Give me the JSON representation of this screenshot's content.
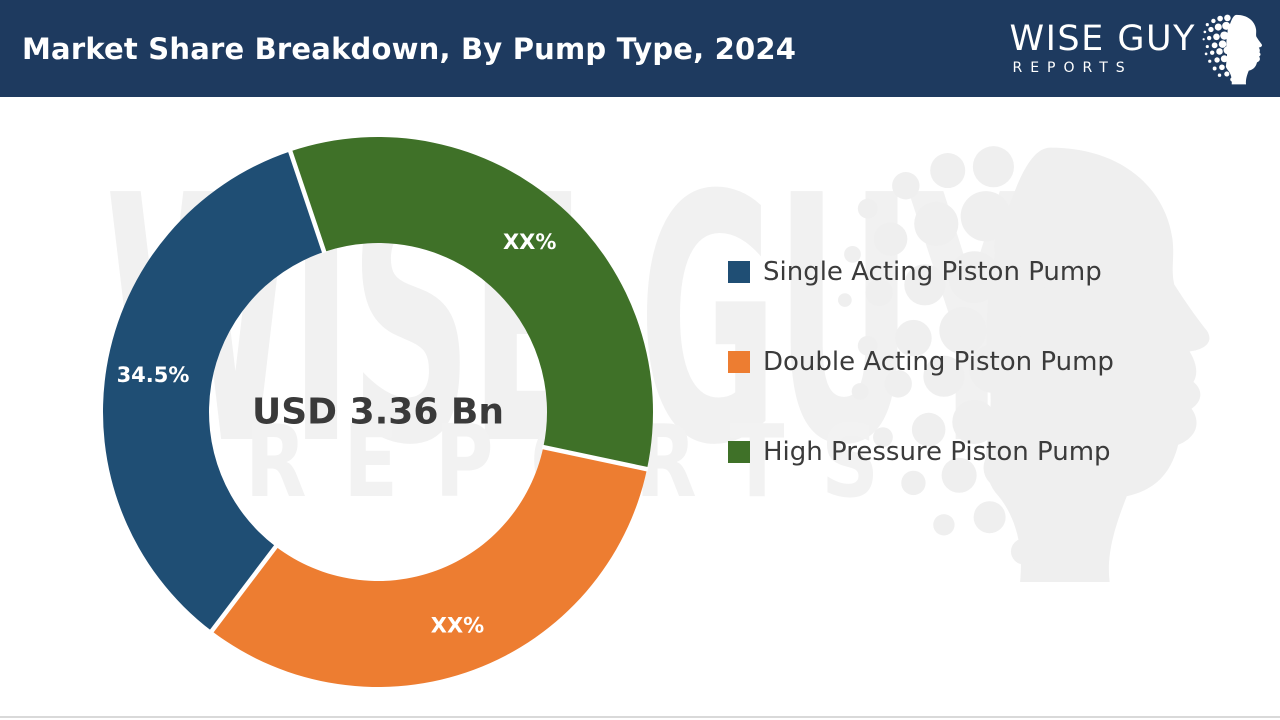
{
  "header": {
    "title": "Market Share Breakdown, By Pump Type, 2024",
    "logo": {
      "line1": "WISE GUY",
      "line2": "REPORTS"
    }
  },
  "watermark": {
    "line1": "WISE GUY",
    "line2": "REPORTS"
  },
  "chart_data": {
    "type": "pie",
    "subtype": "donut",
    "title": "Market Share Breakdown, By Pump Type, 2024",
    "center_label": "USD 3.36 Bn",
    "legend_position": "right",
    "start_angle_deg": 108.6,
    "direction": "counterclockwise",
    "segments": [
      {
        "label": "Single Acting Piston Pump",
        "value": 34.5,
        "display_label": "34.5%",
        "color": "#1f4e74"
      },
      {
        "label": "Double Acting Piston Pump",
        "value": 32.0,
        "display_label": "XX%",
        "color": "#ed7d31"
      },
      {
        "label": "High Pressure Piston Pump",
        "value": 33.5,
        "display_label": "XX%",
        "color": "#3f7128"
      }
    ]
  },
  "colors": {
    "header_bg": "#1e3a5f",
    "blue": "#1f4e74",
    "orange": "#ed7d31",
    "green": "#3f7128",
    "watermark": "#f1f1f1",
    "text": "#3b3b3b"
  }
}
